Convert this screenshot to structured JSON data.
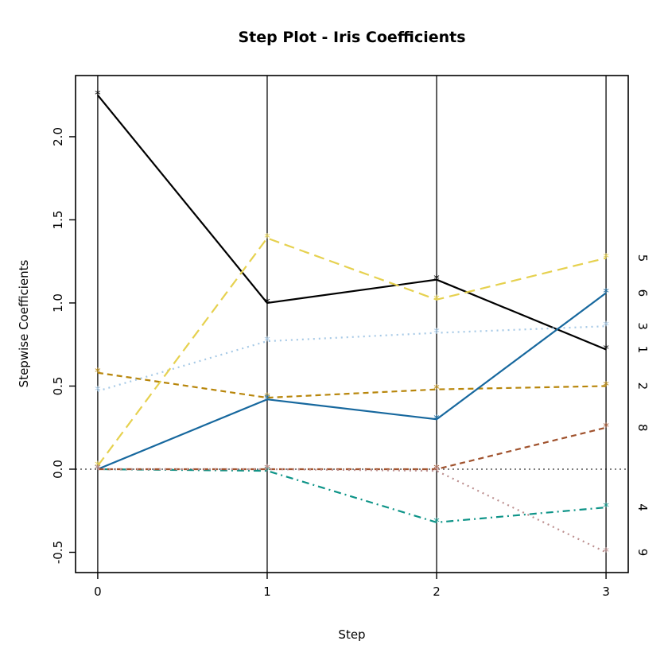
{
  "chart": {
    "title": "Step Plot - Iris Coefficients",
    "xlabel": "Step",
    "ylabel": "Stepwise Coefficients"
  },
  "chart_data": {
    "type": "line",
    "title": "Step Plot - Iris Coefficients",
    "xlabel": "Step",
    "ylabel": "Stepwise Coefficients",
    "x": [
      0,
      1,
      2,
      3
    ],
    "x_tick_labels": [
      "0",
      "1",
      "2",
      "3"
    ],
    "y_ticks": [
      -0.5,
      0.0,
      0.5,
      1.0,
      1.5,
      2.0
    ],
    "xlim": [
      -0.131,
      3.131
    ],
    "ylim": [
      -0.622,
      2.368
    ],
    "marker": "*",
    "zero_line": 0,
    "grid": "vertical-lines-at-each-step",
    "legend_position": "right-axis-variable-numbers",
    "series": [
      {
        "label": "1",
        "color": "#000000",
        "dash": "solid",
        "values": [
          2.25,
          1.0,
          1.14,
          0.72
        ]
      },
      {
        "label": "2",
        "color": "#B8860B",
        "dash": "dashed",
        "values": [
          0.58,
          0.43,
          0.48,
          0.5
        ]
      },
      {
        "label": "3",
        "color": "#A6C9E6",
        "dash": "dotted",
        "values": [
          0.47,
          0.77,
          0.82,
          0.86
        ]
      },
      {
        "label": "4",
        "color": "#0E9488",
        "dash": "dashdot",
        "values": [
          0.0,
          -0.01,
          -0.32,
          -0.23
        ]
      },
      {
        "label": "5",
        "color": "#E6D14F",
        "dash": "longdash",
        "values": [
          0.02,
          1.39,
          1.02,
          1.27
        ]
      },
      {
        "label": "6",
        "color": "#17689E",
        "dash": "solid",
        "values": [
          0.0,
          0.42,
          0.3,
          1.06
        ]
      },
      {
        "label": "8",
        "color": "#A0522D",
        "dash": "dashed",
        "values": [
          0.0,
          0.0,
          0.0,
          0.25
        ]
      },
      {
        "label": "9",
        "color": "#BC8F8F",
        "dash": "dotted",
        "values": [
          0.0,
          0.0,
          -0.01,
          -0.5
        ]
      }
    ]
  }
}
